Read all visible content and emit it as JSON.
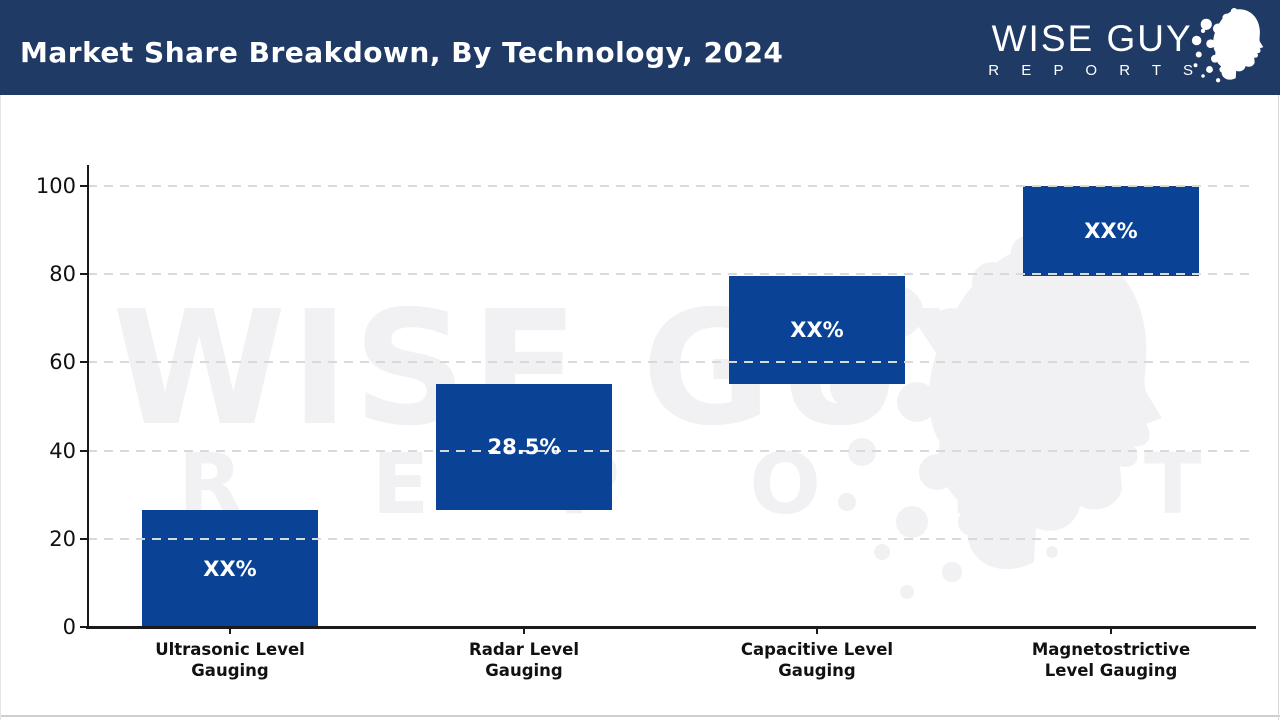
{
  "header": {
    "title": "Market Share Breakdown, By Technology, 2024",
    "logo": {
      "name": "WISE GUY",
      "subtitle": "R E P O R T S"
    }
  },
  "watermark": {
    "line1": "WISE GUY",
    "line2": "R E P O R T S"
  },
  "colors": {
    "header_bg": "#203A66",
    "bar": "#0A4296",
    "bar_label": "#FFFFFF",
    "gridline": "#D9D9D9",
    "axis": "#1A1A1A",
    "watermark": "#F1F1F4"
  },
  "chart_data": {
    "type": "bar",
    "subtype": "waterfall-floating",
    "title": "Market Share Breakdown, By Technology, 2024",
    "xlabel": "",
    "ylabel": "",
    "ylim": [
      0,
      100
    ],
    "yticks": [
      0,
      20,
      40,
      60,
      80,
      100
    ],
    "ytick_labels": [
      "0",
      "20",
      "40",
      "60",
      "80",
      "100"
    ],
    "grid": "dashed-horizontal",
    "legend": "none",
    "categories": [
      "Ultrasonic Level Gauging",
      "Radar Level Gauging",
      "Capacitive Level Gauging",
      "Magnetostrictive Level Gauging"
    ],
    "bars": [
      {
        "category": "Ultrasonic Level Gauging",
        "label_lines": [
          "Ultrasonic Level",
          "Gauging"
        ],
        "start": 0,
        "end": 26.5,
        "value": 26.5,
        "label": "XX%"
      },
      {
        "category": "Radar Level Gauging",
        "label_lines": [
          "Radar Level",
          "Gauging"
        ],
        "start": 26.5,
        "end": 55,
        "value": 28.5,
        "label": "28.5%"
      },
      {
        "category": "Capacitive Level Gauging",
        "label_lines": [
          "Capacitive Level",
          "Gauging"
        ],
        "start": 55,
        "end": 79.5,
        "value": 24.5,
        "label": "XX%"
      },
      {
        "category": "Magnetostrictive Level Gauging",
        "label_lines": [
          "Magnetostrictive",
          "Level Gauging"
        ],
        "start": 79.5,
        "end": 100,
        "value": 20.5,
        "label": "XX%"
      }
    ]
  }
}
